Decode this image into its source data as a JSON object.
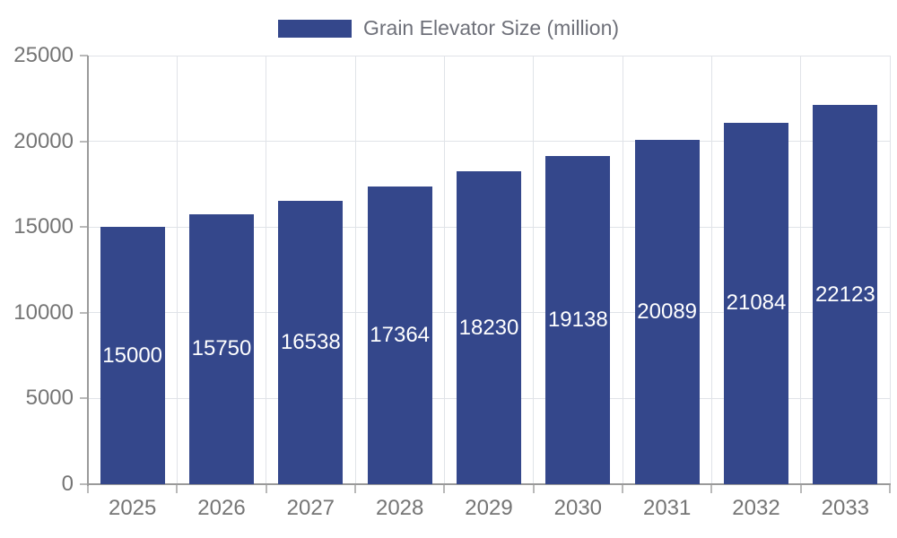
{
  "chart_data": {
    "type": "bar",
    "title": "",
    "legend": "Grain Elevator Size (million)",
    "legend_position": "top",
    "categories": [
      "2025",
      "2026",
      "2027",
      "2028",
      "2029",
      "2030",
      "2031",
      "2032",
      "2033"
    ],
    "values": [
      15000,
      15750,
      16538,
      17364,
      18230,
      19138,
      20089,
      21084,
      22123
    ],
    "xlabel": "",
    "ylabel": "",
    "ylim": [
      0,
      25000
    ],
    "yticks": [
      0,
      5000,
      10000,
      15000,
      20000,
      25000
    ],
    "grid": true,
    "colors": {
      "bar": "#34478b",
      "bar_value_text": "#ffffff",
      "axis_text": "#757575",
      "legend_text": "#6e7079",
      "grid_line": "#e0e3e8",
      "axis_line": "#9a9a9a",
      "tick_mark": "#b9b9b9",
      "background": "#ffffff"
    }
  }
}
